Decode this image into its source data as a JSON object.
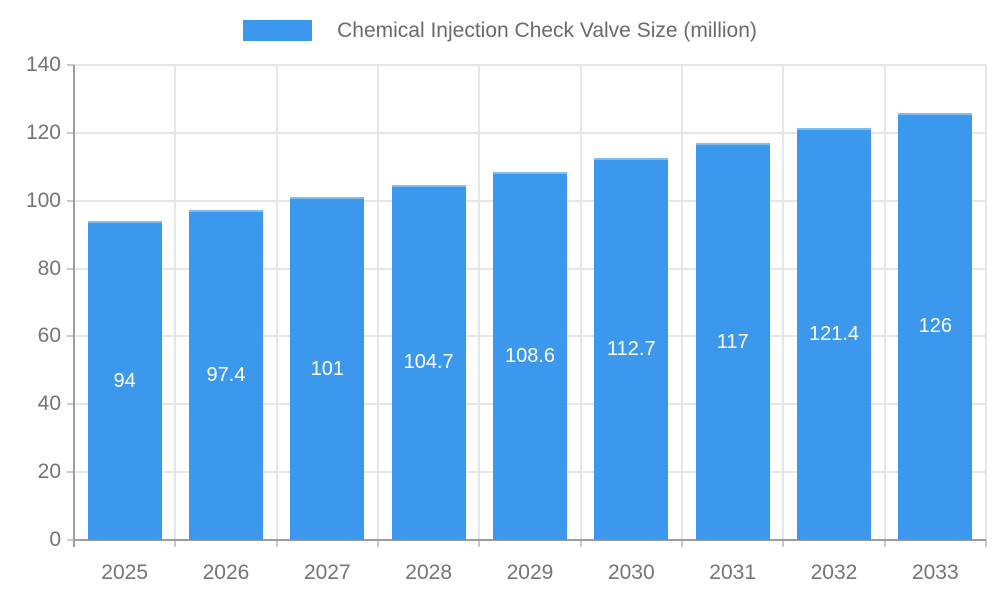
{
  "legend": {
    "label": "Chemical Injection Check Valve Size (million)"
  },
  "chart_data": {
    "type": "bar",
    "title": "Chemical Injection Check Valve Size (million)",
    "series_name": "Chemical Injection Check Valve Size (million)",
    "categories": [
      "2025",
      "2026",
      "2027",
      "2028",
      "2029",
      "2030",
      "2031",
      "2032",
      "2033"
    ],
    "values": [
      94,
      97.4,
      101,
      104.7,
      108.6,
      112.7,
      117,
      121.4,
      126
    ],
    "xlabel": "",
    "ylabel": "",
    "ylim": [
      0,
      140
    ],
    "y_ticks": [
      0,
      20,
      40,
      60,
      80,
      100,
      120,
      140
    ],
    "grid": true,
    "legend_position": "top-center",
    "value_label_position": "inside-middle",
    "colors": {
      "bar": "#3b98ec",
      "legend_text": "#6b6b6b",
      "tick_text": "#757575",
      "grid": "#e6e6e6",
      "axis": "#9e9e9e",
      "tick_mark": "#c9c9c9",
      "value_label_text": "#ffffff",
      "background": "#ffffff"
    }
  }
}
